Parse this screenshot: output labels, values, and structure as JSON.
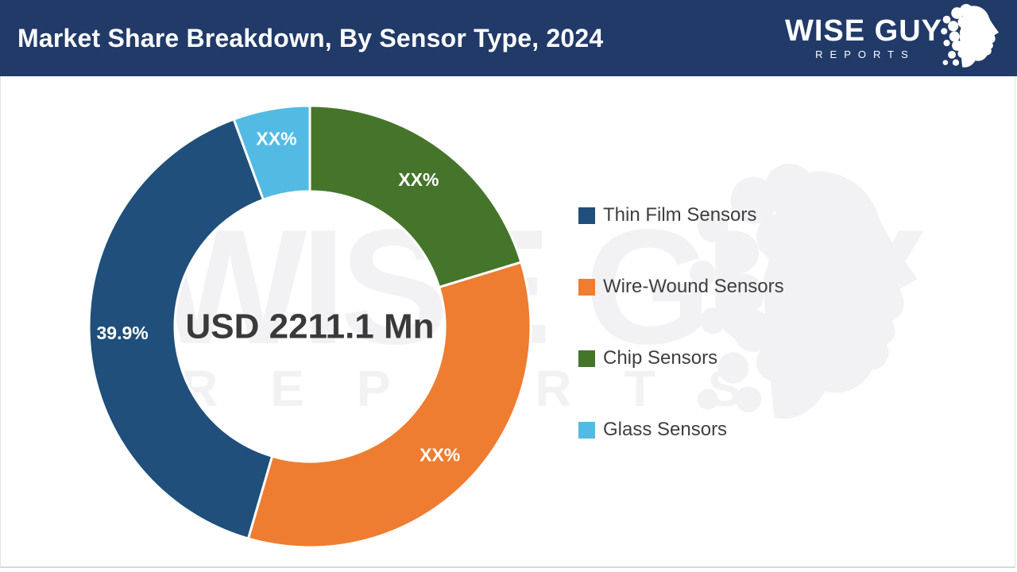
{
  "header": {
    "title": "Market Share Breakdown, By Sensor Type, 2024",
    "logo": {
      "name": "WISE GUY",
      "sub": "REPORTS"
    }
  },
  "chart_data": {
    "type": "donut",
    "title": "Market Share Breakdown, By Sensor Type, 2024",
    "center_label": "USD 2211.1 Mn",
    "unit": "percent share",
    "legend_position": "right",
    "segments": [
      {
        "name": "Chip Sensors",
        "value": 20.3,
        "label": "XX%",
        "color": "#45752b"
      },
      {
        "name": "Wire-Wound Sensors",
        "value": 34.2,
        "label": "XX%",
        "color": "#ee7d31"
      },
      {
        "name": "Thin Film Sensors",
        "value": 39.9,
        "label": "39.9%",
        "color": "#1f4f7a"
      },
      {
        "name": "Glass Sensors",
        "value": 5.6,
        "label": "XX%",
        "color": "#53bbe3"
      }
    ]
  },
  "legend": {
    "items": [
      {
        "label": "Thin Film Sensors",
        "color": "#1f4f7a"
      },
      {
        "label": "Wire-Wound Sensors",
        "color": "#ee7d31"
      },
      {
        "label": "Chip Sensors",
        "color": "#45752b"
      },
      {
        "label": "Glass Sensors",
        "color": "#53bbe3"
      }
    ]
  },
  "watermark": {
    "line1": "WISE GUY",
    "line2": "REPORTS"
  },
  "colors": {
    "header_bg": "#213a68",
    "header_text": "#ffffff",
    "center_text": "#3a3a3a",
    "legend_text": "#3f3f3f",
    "segment_label_text": "#ffffff",
    "watermark": "#f2f2f5",
    "bottom_rule": "#d8d8d8"
  }
}
